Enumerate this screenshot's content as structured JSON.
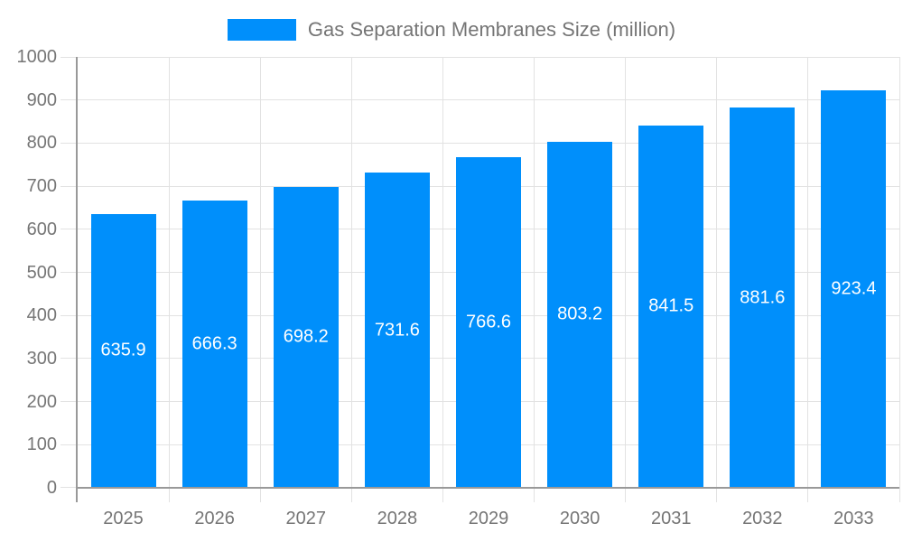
{
  "legend": {
    "label": "Gas Separation Membranes Size (million)"
  },
  "chart_data": {
    "type": "bar",
    "title": "Gas Separation Membranes Size (million)",
    "categories": [
      "2025",
      "2026",
      "2027",
      "2028",
      "2029",
      "2030",
      "2031",
      "2032",
      "2033"
    ],
    "series": [
      {
        "name": "Gas Separation Membranes Size (million)",
        "values": [
          635.9,
          666.3,
          698.2,
          731.6,
          766.6,
          803.2,
          841.5,
          881.6,
          923.4
        ]
      }
    ],
    "xlabel": "",
    "ylabel": "",
    "ylim": [
      0,
      1000
    ],
    "yticks": [
      0,
      100,
      200,
      300,
      400,
      500,
      600,
      700,
      800,
      900,
      1000
    ],
    "grid": true,
    "legend_position": "top",
    "value_labels": "inside-center",
    "colors": {
      "bar": "#008FFB",
      "value_label": "#ffffff",
      "axis_text": "#757575",
      "gridline": "#e2e2e2",
      "axis_line": "#999999",
      "background": "#ffffff"
    }
  }
}
